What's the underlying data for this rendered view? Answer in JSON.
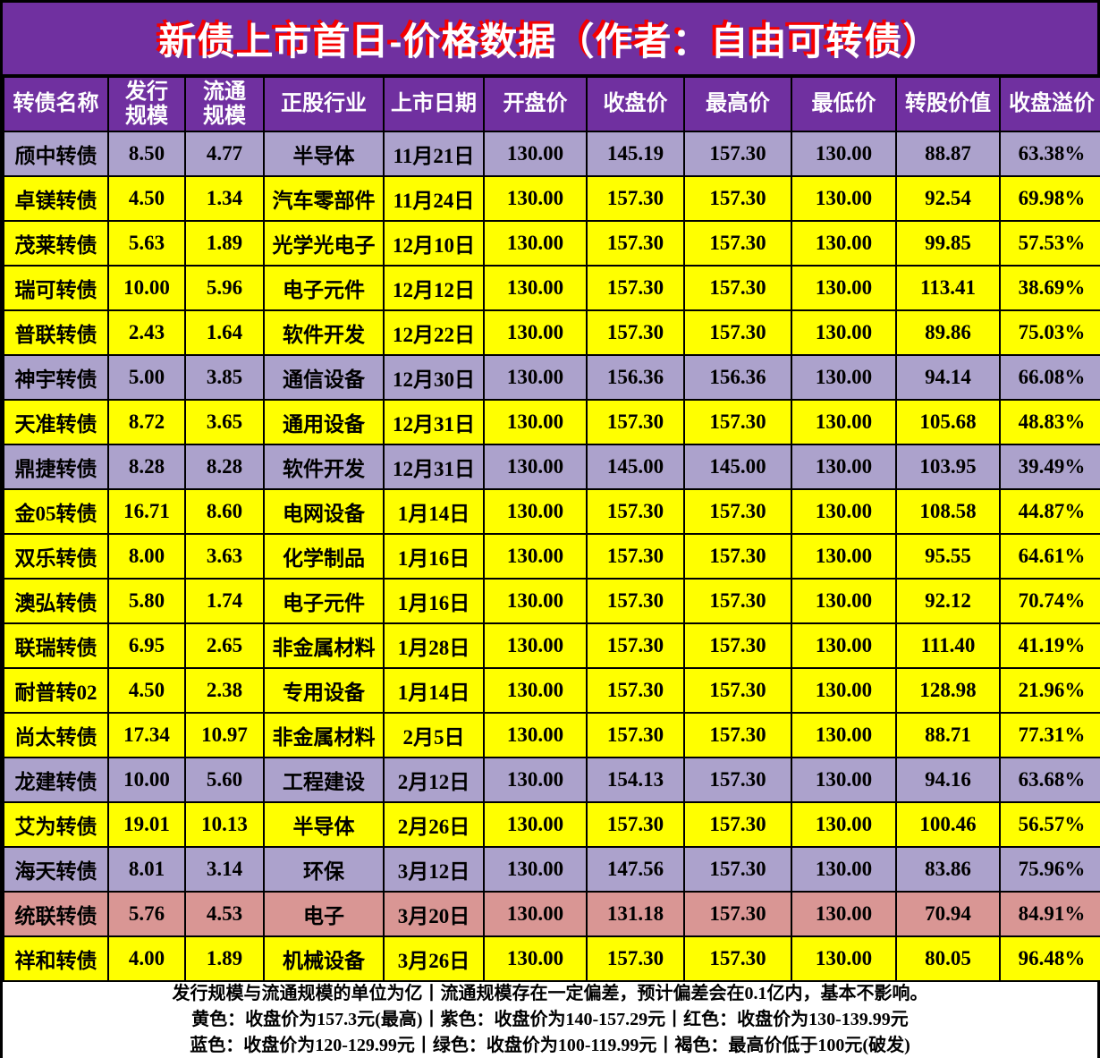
{
  "title": "新债上市首日-价格数据（作者：自由可转债）",
  "colors": {
    "header_bg": "#7030A0",
    "title_text": "#FFFFFF",
    "title_shadow": "#F50000",
    "header_text": "#FFFFFF",
    "row_yellow": "#FFFF00",
    "row_purple": "#ACA2CC",
    "row_red": "#D99694",
    "grid": "#000000",
    "cell_text": "#000000"
  },
  "chart_data": {
    "type": "table",
    "title": "新债上市首日-价格数据（作者：自由可转债）",
    "columns": [
      "转债名称",
      "发行\n规模",
      "流通\n规模",
      "正股行业",
      "上市日期",
      "开盘价",
      "收盘价",
      "最高价",
      "最低价",
      "转股价值",
      "收盘溢价"
    ],
    "rows": [
      [
        "颀中转债",
        "8.50",
        "4.77",
        "半导体",
        "11月21日",
        "130.00",
        "145.19",
        "157.30",
        "130.00",
        "88.87",
        "63.38%"
      ],
      [
        "卓镁转债",
        "4.50",
        "1.34",
        "汽车零部件",
        "11月24日",
        "130.00",
        "157.30",
        "157.30",
        "130.00",
        "92.54",
        "69.98%"
      ],
      [
        "茂莱转债",
        "5.63",
        "1.89",
        "光学光电子",
        "12月10日",
        "130.00",
        "157.30",
        "157.30",
        "130.00",
        "99.85",
        "57.53%"
      ],
      [
        "瑞可转债",
        "10.00",
        "5.96",
        "电子元件",
        "12月12日",
        "130.00",
        "157.30",
        "157.30",
        "130.00",
        "113.41",
        "38.69%"
      ],
      [
        "普联转债",
        "2.43",
        "1.64",
        "软件开发",
        "12月22日",
        "130.00",
        "157.30",
        "157.30",
        "130.00",
        "89.86",
        "75.03%"
      ],
      [
        "神宇转债",
        "5.00",
        "3.85",
        "通信设备",
        "12月30日",
        "130.00",
        "156.36",
        "156.36",
        "130.00",
        "94.14",
        "66.08%"
      ],
      [
        "天准转债",
        "8.72",
        "3.65",
        "通用设备",
        "12月31日",
        "130.00",
        "157.30",
        "157.30",
        "130.00",
        "105.68",
        "48.83%"
      ],
      [
        "鼎捷转债",
        "8.28",
        "8.28",
        "软件开发",
        "12月31日",
        "130.00",
        "145.00",
        "145.00",
        "130.00",
        "103.95",
        "39.49%"
      ],
      [
        "金05转债",
        "16.71",
        "8.60",
        "电网设备",
        "1月14日",
        "130.00",
        "157.30",
        "157.30",
        "130.00",
        "108.58",
        "44.87%"
      ],
      [
        "双乐转债",
        "8.00",
        "3.63",
        "化学制品",
        "1月16日",
        "130.00",
        "157.30",
        "157.30",
        "130.00",
        "95.55",
        "64.61%"
      ],
      [
        "澳弘转债",
        "5.80",
        "1.74",
        "电子元件",
        "1月16日",
        "130.00",
        "157.30",
        "157.30",
        "130.00",
        "92.12",
        "70.74%"
      ],
      [
        "联瑞转债",
        "6.95",
        "2.65",
        "非金属材料",
        "1月28日",
        "130.00",
        "157.30",
        "157.30",
        "130.00",
        "111.40",
        "41.19%"
      ],
      [
        "耐普转02",
        "4.50",
        "2.38",
        "专用设备",
        "1月14日",
        "130.00",
        "157.30",
        "157.30",
        "130.00",
        "128.98",
        "21.96%"
      ],
      [
        "尚太转债",
        "17.34",
        "10.97",
        "非金属材料",
        "2月5日",
        "130.00",
        "157.30",
        "157.30",
        "130.00",
        "88.71",
        "77.31%"
      ],
      [
        "龙建转债",
        "10.00",
        "5.60",
        "工程建设",
        "2月12日",
        "130.00",
        "154.13",
        "157.30",
        "130.00",
        "94.16",
        "63.68%"
      ],
      [
        "艾为转债",
        "19.01",
        "10.13",
        "半导体",
        "2月26日",
        "130.00",
        "157.30",
        "157.30",
        "130.00",
        "100.46",
        "56.57%"
      ],
      [
        "海天转债",
        "8.01",
        "3.14",
        "环保",
        "3月12日",
        "130.00",
        "147.56",
        "157.30",
        "130.00",
        "83.86",
        "75.96%"
      ],
      [
        "统联转债",
        "5.76",
        "4.53",
        "电子",
        "3月20日",
        "130.00",
        "131.18",
        "157.30",
        "130.00",
        "70.94",
        "84.91%"
      ],
      [
        "祥和转债",
        "4.00",
        "1.89",
        "机械设备",
        "3月26日",
        "130.00",
        "157.30",
        "157.30",
        "130.00",
        "80.05",
        "96.48%"
      ]
    ],
    "row_colors": [
      "purple",
      "yellow",
      "yellow",
      "yellow",
      "yellow",
      "purple",
      "yellow",
      "purple",
      "yellow",
      "yellow",
      "yellow",
      "yellow",
      "yellow",
      "yellow",
      "purple",
      "yellow",
      "purple",
      "red",
      "yellow"
    ],
    "legend": {
      "黄色": "收盘价为157.3元(最高)",
      "紫色": "收盘价为140-157.29元",
      "红色": "收盘价为130-139.99元",
      "蓝色": "收盘价为120-129.99元",
      "绿色": "收盘价为100-119.99元",
      "褐色": "最高价低于100元(破发)"
    }
  },
  "footer": {
    "line1": "发行规模与流通规模的单位为亿丨流通规模存在一定偏差，预计偏差会在0.1亿内，基本不影响。",
    "line2": "黄色：收盘价为157.3元(最高)丨紫色：收盘价为140-157.29元丨红色：收盘价为130-139.99元",
    "line3": "蓝色：收盘价为120-129.99元丨绿色：收盘价为100-119.99元丨褐色：最高价低于100元(破发)"
  }
}
